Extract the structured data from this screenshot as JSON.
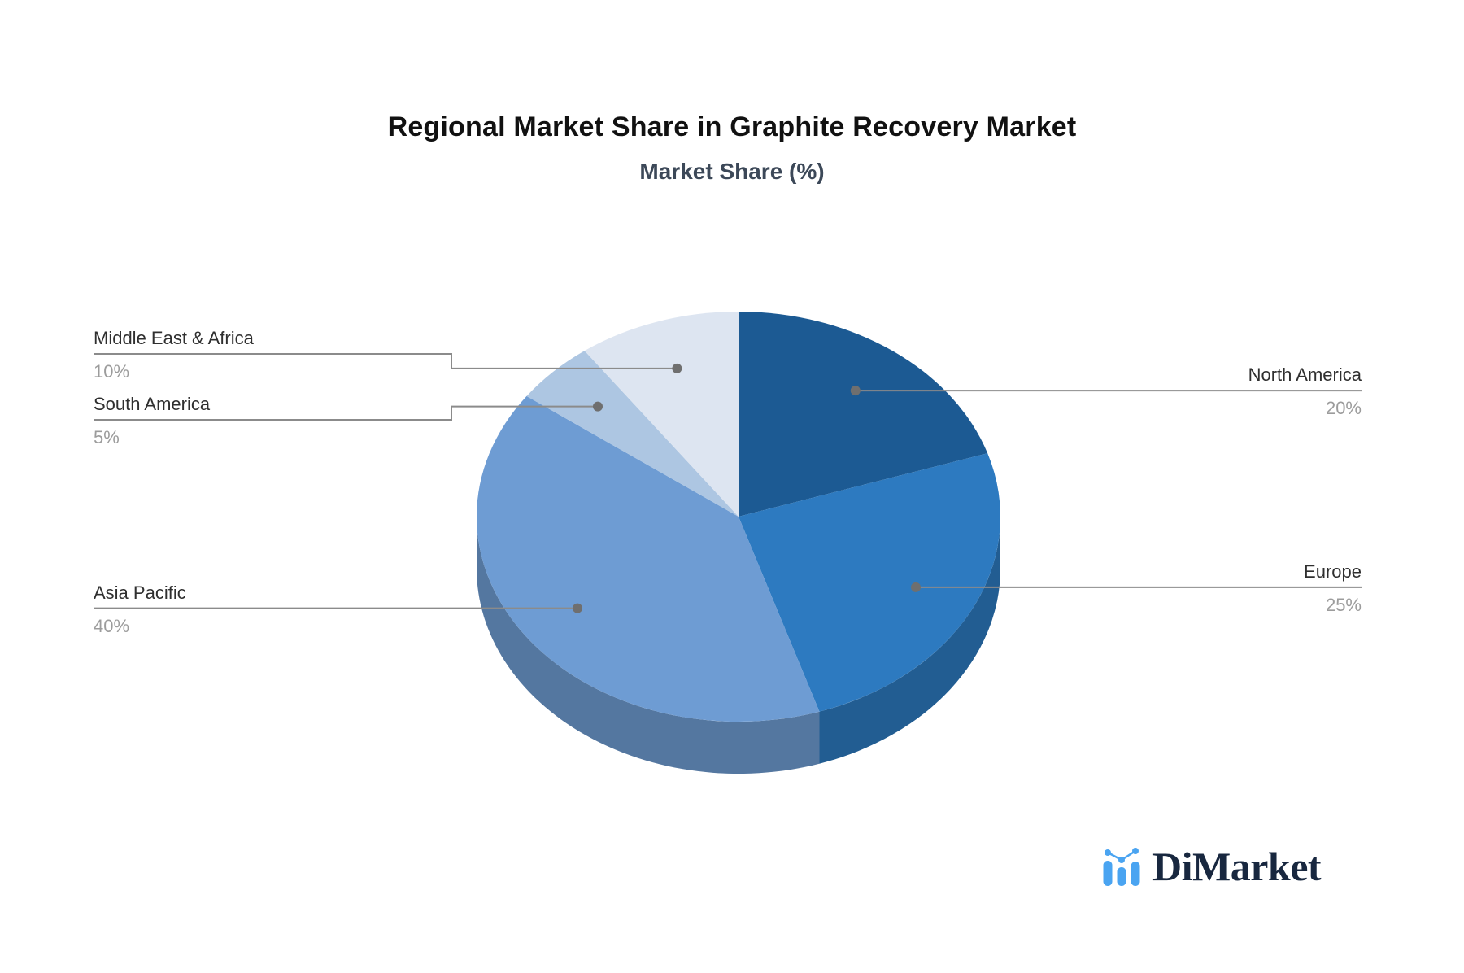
{
  "chart_data": {
    "type": "pie",
    "title": "Regional Market Share in Graphite Recovery Market",
    "subtitle": "Market Share (%)",
    "effect": "3d",
    "start_angle": "top",
    "direction": "clockwise",
    "unit": "%",
    "slices": [
      {
        "label": "North America",
        "value": 20,
        "display": "20%",
        "color": "#1c5a93"
      },
      {
        "label": "Europe",
        "value": 25,
        "display": "25%",
        "color": "#2d7ac0"
      },
      {
        "label": "Asia Pacific",
        "value": 40,
        "display": "40%",
        "color": "#6e9cd3"
      },
      {
        "label": "South America",
        "value": 5,
        "display": "5%",
        "color": "#adc6e2"
      },
      {
        "label": "Middle East & Africa",
        "value": 10,
        "display": "10%",
        "color": "#dde5f1"
      }
    ],
    "legend": "none",
    "label_text_color": "#2f2f2f",
    "percent_text_color": "#9c9c9c",
    "leader_line_color": "#8b8b8b",
    "leader_dot_color": "#6f6f6f"
  },
  "branding": {
    "logo_text": "DiMarket",
    "logo_icon": "bar-line-chart-icon",
    "logo_text_color": "#18273f",
    "logo_accent_color": "#4aa4f1"
  }
}
